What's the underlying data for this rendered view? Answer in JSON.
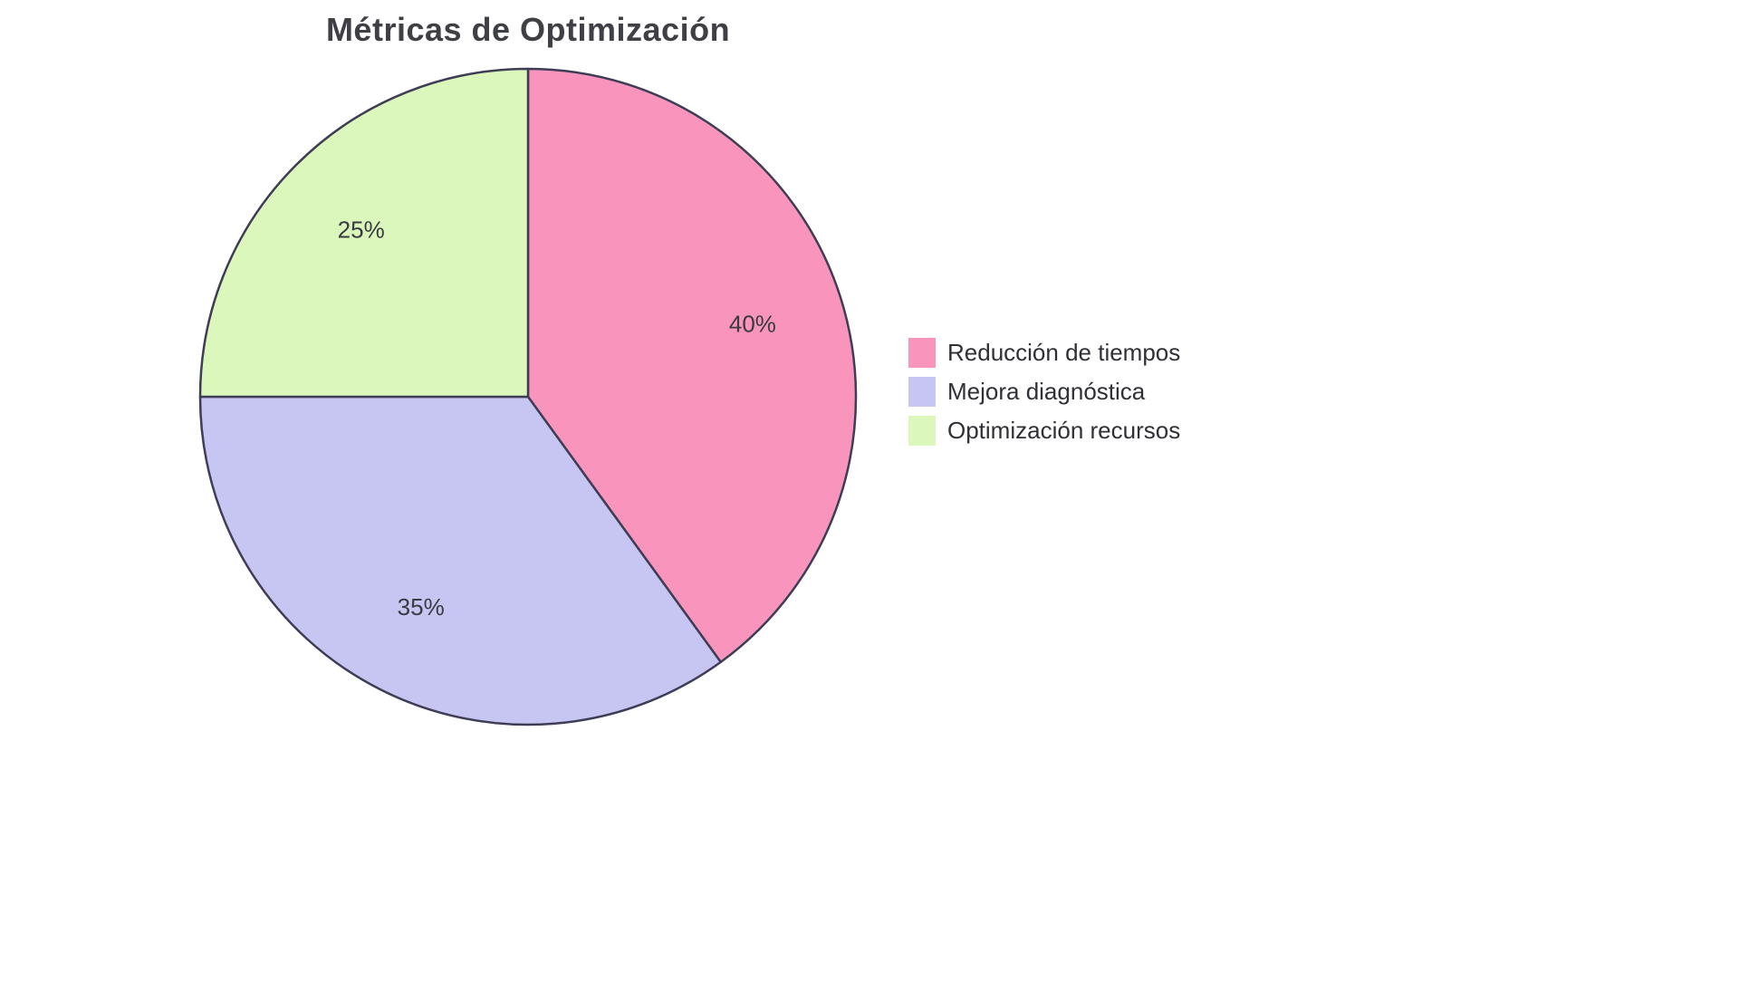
{
  "chart_data": {
    "type": "pie",
    "title": "Métricas de Optimización",
    "direction": "clockwise",
    "start_angle_deg": 0,
    "legend_position": "right",
    "stroke_color": "#3f3d56",
    "label_color": "#3a3a42",
    "slices": [
      {
        "label": "Reducción de tiempos",
        "value": 40,
        "pct_label": "40%",
        "color": "#f995bd"
      },
      {
        "label": "Mejora diagnóstica",
        "value": 35,
        "pct_label": "35%",
        "color": "#c7c5f1"
      },
      {
        "label": "Optimización recursos",
        "value": 25,
        "pct_label": "25%",
        "color": "#dbf7bc"
      }
    ]
  }
}
